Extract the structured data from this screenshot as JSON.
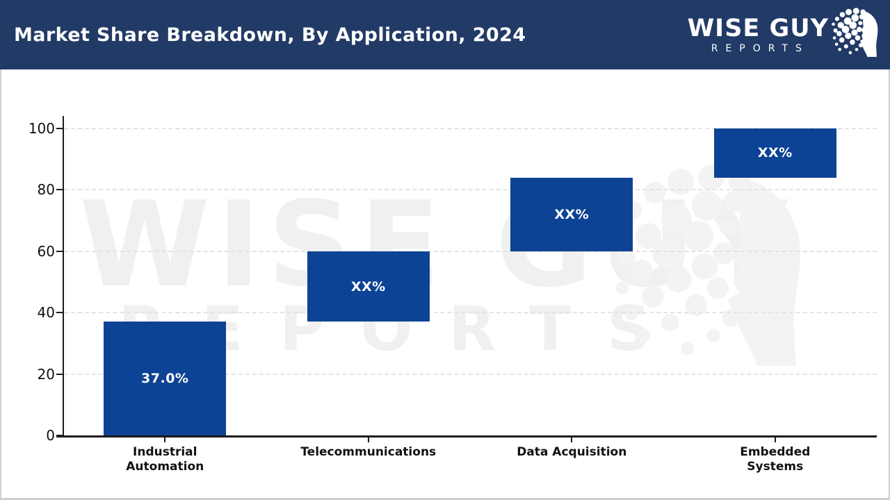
{
  "header": {
    "title": "Market Share Breakdown, By Application, 2024",
    "logo": {
      "line1": "WISE GUY",
      "line2": "REPORTS"
    }
  },
  "watermark": {
    "line1": "WISE GUY",
    "line2": "REPORTS"
  },
  "colors": {
    "header_bg": "#223a66",
    "bar": "#0d4394",
    "grid": "#e3e3e3",
    "axis": "#1c1c1c",
    "tick_label": "#111111",
    "value_label": "#ffffff",
    "watermark": "#f0f0f0",
    "border": "#cfcfcf"
  },
  "chart_data": {
    "type": "bar",
    "subtype": "waterfall-floating-bars",
    "title": "Market Share Breakdown, By Application, 2024",
    "categories": [
      "Industrial Automation",
      "Telecommunications",
      "Data Acquisition",
      "Embedded Systems"
    ],
    "category_lines": [
      [
        "Industrial",
        "Automation"
      ],
      [
        "Telecommunications"
      ],
      [
        "Data Acquisition"
      ],
      [
        "Embedded Systems"
      ]
    ],
    "segments": [
      {
        "start": 0,
        "end": 37
      },
      {
        "start": 37,
        "end": 60
      },
      {
        "start": 60,
        "end": 84
      },
      {
        "start": 84,
        "end": 100
      }
    ],
    "bar_labels": [
      "37.0%",
      "XX%",
      "XX%",
      "XX%"
    ],
    "yticks": [
      0,
      20,
      40,
      60,
      80,
      100
    ],
    "ylim": [
      0,
      104
    ],
    "xlabel": "",
    "ylabel": "",
    "grid": "dashed-horizontal",
    "legend": "none"
  }
}
